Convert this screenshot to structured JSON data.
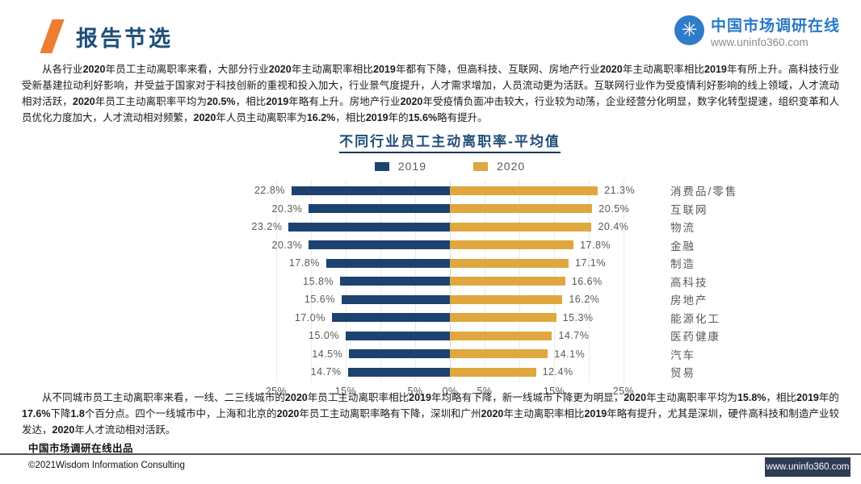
{
  "header": {
    "section_title": "报告节选",
    "brand_name": "中国市场调研在线",
    "brand_url": "www.uninfo360.com"
  },
  "paragraphs": {
    "top": [
      {
        "t": "从各行业"
      },
      {
        "t": "2020",
        "b": true
      },
      {
        "t": "年员工主动离职率来看，大部分行业"
      },
      {
        "t": "2020",
        "b": true
      },
      {
        "t": "年主动离职率相比"
      },
      {
        "t": "2019",
        "b": true
      },
      {
        "t": "年都有下降，但高科技、互联网、房地产行业"
      },
      {
        "t": "2020",
        "b": true
      },
      {
        "t": "年主动离职率相比"
      },
      {
        "t": "2019",
        "b": true
      },
      {
        "t": "年有所上升。高科技行业受新基建拉动利好影响，并受益于国家对于科技创新的重视和投入加大，行业景气度提升，人才需求增加，人员流动更为活跃。互联网行业作为受疫情利好影响的线上领域，人才流动相对活跃，"
      },
      {
        "t": "2020",
        "b": true
      },
      {
        "t": "年员工主动离职率平均为"
      },
      {
        "t": "20.5%",
        "b": true
      },
      {
        "t": "，相比"
      },
      {
        "t": "2019",
        "b": true
      },
      {
        "t": "年略有上升。房地产行业"
      },
      {
        "t": "2020",
        "b": true
      },
      {
        "t": "年受疫情负面冲击较大，行业较为动荡，企业经营分化明显，数字化转型提速，组织变革和人员优化力度加大，人才流动相对频繁，"
      },
      {
        "t": "2020",
        "b": true
      },
      {
        "t": "年人员主动离职率为"
      },
      {
        "t": "16.2%",
        "b": true
      },
      {
        "t": "，相比"
      },
      {
        "t": "2019",
        "b": true
      },
      {
        "t": "年的"
      },
      {
        "t": "15.6%",
        "b": true
      },
      {
        "t": "略有提升。"
      }
    ],
    "bottom": [
      {
        "t": "从不同城市员工主动离职率来看，一线、二三线城市的"
      },
      {
        "t": "2020",
        "b": true
      },
      {
        "t": "年员工主动离职率相比"
      },
      {
        "t": "2019",
        "b": true
      },
      {
        "t": "年均略有下降，新一线城市下降更为明显，"
      },
      {
        "t": "2020",
        "b": true
      },
      {
        "t": "年主动离职率平均为"
      },
      {
        "t": "15.8%",
        "b": true
      },
      {
        "t": "，相比"
      },
      {
        "t": "2019",
        "b": true
      },
      {
        "t": "年的"
      },
      {
        "t": "17.6%",
        "b": true
      },
      {
        "t": "下降"
      },
      {
        "t": "1.8",
        "b": true
      },
      {
        "t": "个百分点。四个一线城市中，上海和北京的"
      },
      {
        "t": "2020",
        "b": true
      },
      {
        "t": "年员工主动离职率略有下降，深圳和广州"
      },
      {
        "t": "2020",
        "b": true
      },
      {
        "t": "年主动离职率相比"
      },
      {
        "t": "2019",
        "b": true
      },
      {
        "t": "年略有提升，尤其是深圳，硬件高科技和制造产业较发达，"
      },
      {
        "t": "2020",
        "b": true
      },
      {
        "t": "年人才流动相对活跃。"
      }
    ]
  },
  "chart_data": {
    "type": "bar",
    "variant": "butterfly",
    "title": "不同行业员工主动离职率-平均值",
    "categories": [
      "消费品/零售",
      "互联网",
      "物流",
      "金融",
      "制造",
      "高科技",
      "房地产",
      "能源化工",
      "医药健康",
      "汽车",
      "贸易"
    ],
    "series": [
      {
        "name": "2019",
        "values": [
          22.8,
          20.3,
          23.2,
          20.3,
          17.8,
          15.8,
          15.6,
          17.0,
          15.0,
          14.5,
          14.7
        ]
      },
      {
        "name": "2020",
        "values": [
          21.3,
          20.5,
          20.4,
          17.8,
          17.1,
          16.6,
          16.2,
          15.3,
          14.7,
          14.1,
          12.4
        ]
      }
    ],
    "value_suffix": "%",
    "axis_ticks": [
      "25%",
      "15%",
      "5%",
      "0%",
      "5%",
      "15%",
      "25%"
    ],
    "xlim": 25,
    "grid": true,
    "legend_position": "top",
    "colors": {
      "series_2019": "#1C4270",
      "series_2020": "#E0A73F"
    }
  },
  "icons": {
    "brand_icon": "snowflake-arrows-icon",
    "brand_glyph": "✳",
    "slash_icon": "orange-slash"
  },
  "footer": {
    "produced_by": "中国市场调研在线出品",
    "copyright": "©2021Wisdom Information Consulting",
    "site_badge": "www.uninfo360.com"
  }
}
